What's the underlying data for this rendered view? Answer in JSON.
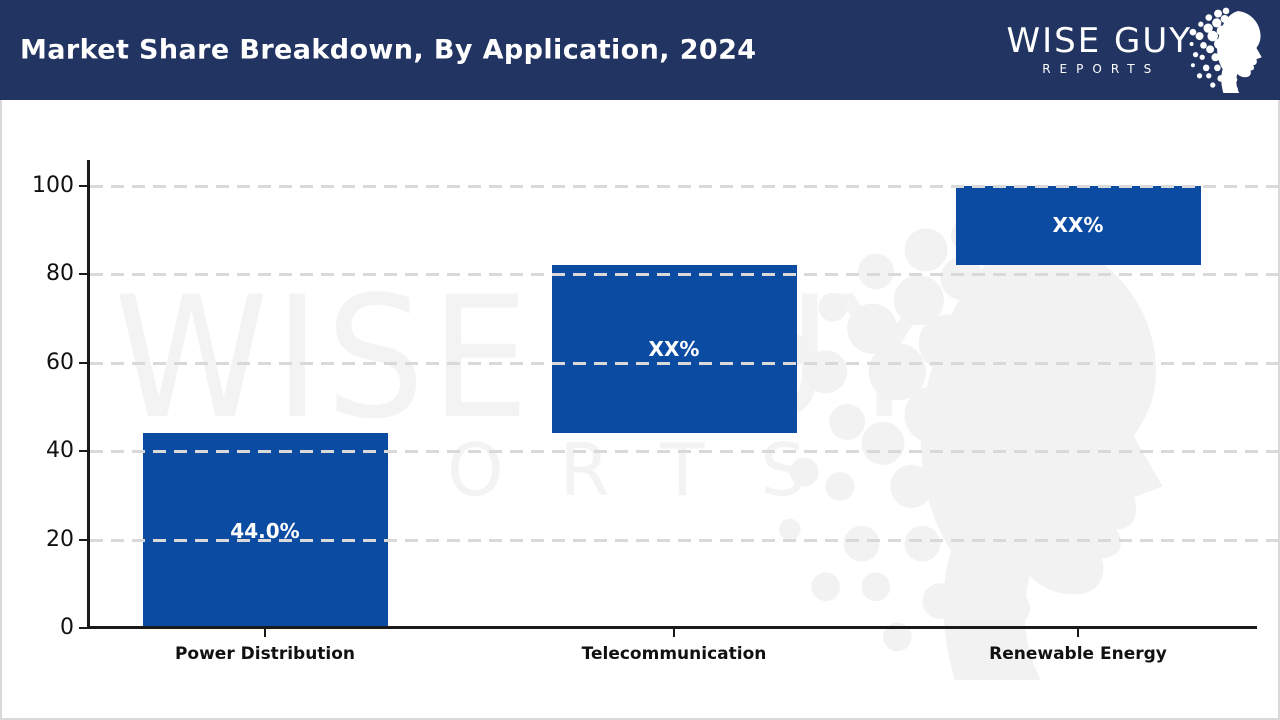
{
  "header": {
    "title": "Market Share Breakdown, By Application, 2024",
    "logo": {
      "line1": "WISE GUY",
      "line2": "REPORTS"
    }
  },
  "watermark": {
    "line1": "WISE GUY",
    "line2": "REPORTS"
  },
  "colors": {
    "header_bg": "#223462",
    "bar": "#0b4ba2",
    "gridline": "#d9d9d9",
    "axis": "#1a1a1a",
    "watermark": "#f2f2f2",
    "title_text": "#ffffff",
    "bar_label_text": "#ffffff"
  },
  "chart_data": {
    "type": "bar",
    "variant": "floating-segment (waterfall-style market share bars)",
    "title": "Market Share Breakdown, By Application, 2024",
    "categories": [
      "Power Distribution",
      "Telecommunication",
      "Renewable Energy"
    ],
    "segments": [
      {
        "category": "Power Distribution",
        "start": 0,
        "end": 44,
        "label": "44.0%"
      },
      {
        "category": "Telecommunication",
        "start": 44,
        "end": 82,
        "label": "XX%"
      },
      {
        "category": "Renewable Energy",
        "start": 82,
        "end": 100,
        "label": "XX%"
      }
    ],
    "yticks": [
      0,
      20,
      40,
      60,
      80,
      100
    ],
    "ylim": [
      0,
      105
    ],
    "xlabel": "",
    "ylabel": "",
    "grid": "horizontal-dashed",
    "legend": "none",
    "bar_color": "#0b4ba2"
  }
}
